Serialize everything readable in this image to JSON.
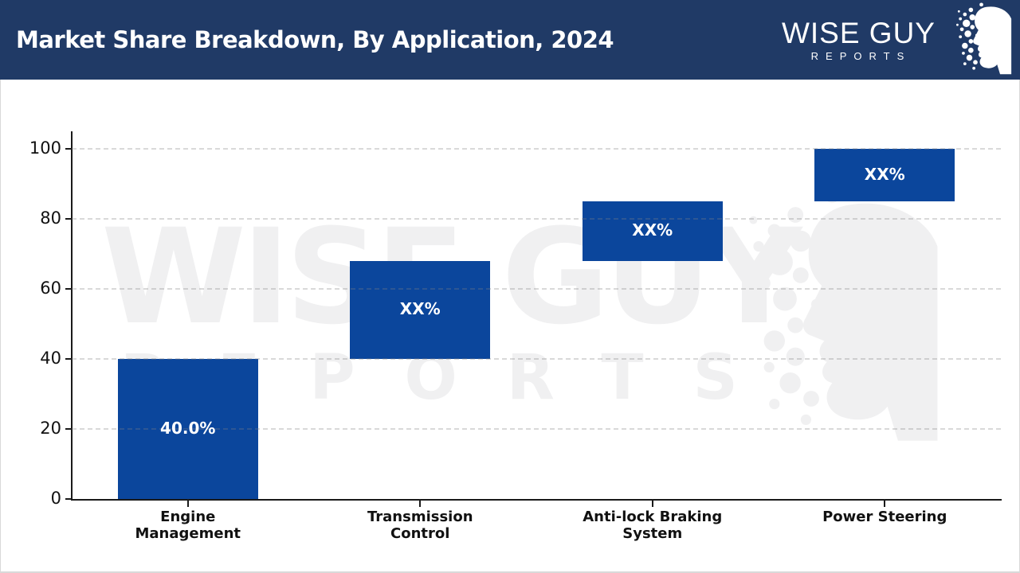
{
  "header": {
    "title": "Market Share Breakdown, By Application, 2024",
    "logo": {
      "name": "WISE GUY",
      "tagline": "REPORTS"
    }
  },
  "watermark": {
    "line1": "WISE GUY",
    "line2": "REPORTS"
  },
  "chart_data": {
    "type": "bar",
    "subtype": "waterfall",
    "title": "Market Share Breakdown, By Application, 2024",
    "categories": [
      "Engine Management",
      "Transmission Control",
      "Anti-lock Braking System",
      "Power Steering"
    ],
    "bars": [
      {
        "category": "Engine Management",
        "start": 0,
        "end": 40,
        "label": "40.0%"
      },
      {
        "category": "Transmission Control",
        "start": 40,
        "end": 68,
        "label": "XX%"
      },
      {
        "category": "Anti-lock Braking System",
        "start": 68,
        "end": 85,
        "label": "XX%"
      },
      {
        "category": "Power Steering",
        "start": 85,
        "end": 100,
        "label": "XX%"
      }
    ],
    "ylabel": "",
    "xlabel": "",
    "ylim": [
      0,
      105
    ],
    "yticks": [
      0,
      20,
      40,
      60,
      80,
      100
    ],
    "grid": "horizontal-dashed",
    "legend": "none",
    "bar_color": "#0b469c",
    "bar_label_color": "#ffffff"
  },
  "colors": {
    "header_bg": "#203a66",
    "bar": "#0b469c",
    "watermark": "#f0f0f1",
    "grid": "#c8c8c8",
    "spine": "#1a1a1a"
  }
}
